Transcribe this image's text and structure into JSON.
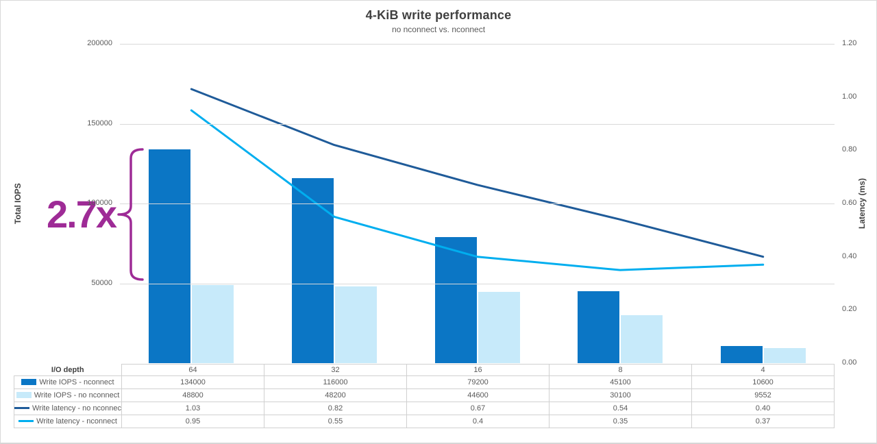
{
  "title": "4-KiB write performance",
  "subtitle": "no nconnect vs. nconnect",
  "annotation": {
    "label": "2.7x",
    "color": "#9e2b96"
  },
  "colors": {
    "grid": "#d9d9d9",
    "table_border": "#d0d0d0",
    "text": "#595959",
    "title_text": "#404040",
    "bar_nconnect": "#0b76c5",
    "bar_no_nconnect": "#c7eafa",
    "line_no_nconnect": "#1f5b99",
    "line_nconnect": "#00aeef"
  },
  "chart_data": {
    "type": "combo-bar-line",
    "title": "4-KiB write performance",
    "subtitle": "no nconnect vs. nconnect",
    "category_axis_label": "I/O depth",
    "categories": [
      "64",
      "32",
      "16",
      "8",
      "4"
    ],
    "left_axis": {
      "label": "Total IOPS",
      "min": 0,
      "max": 200000,
      "tick_values": [
        200000,
        150000,
        100000,
        50000
      ],
      "tick_labels": [
        "200000",
        "150000",
        "100000",
        "50000"
      ],
      "grid": true
    },
    "right_axis": {
      "label": "Latency (ms)",
      "min": 0,
      "max": 1.2,
      "tick_values": [
        1.2,
        1.0,
        0.8,
        0.6,
        0.4,
        0.2,
        0.0
      ],
      "tick_labels": [
        "1.20",
        "1.00",
        "0.80",
        "0.60",
        "0.40",
        "0.20",
        "0.00"
      ],
      "grid": false
    },
    "legend_position": "table-left-column",
    "series": [
      {
        "name": "Write IOPS - nconnect",
        "type": "bar",
        "axis": "left",
        "color": "#0b76c5",
        "values": [
          134000,
          116000,
          79200,
          45100,
          10600
        ],
        "table_values": [
          "134000",
          "116000",
          "79200",
          "45100",
          "10600"
        ]
      },
      {
        "name": "Write IOPS - no nconnect",
        "type": "bar",
        "axis": "left",
        "color": "#c7eafa",
        "values": [
          48800,
          48200,
          44600,
          30100,
          9552
        ],
        "table_values": [
          "48800",
          "48200",
          "44600",
          "30100",
          "9552"
        ]
      },
      {
        "name": "Write latency - no nconnect",
        "type": "line",
        "axis": "right",
        "color": "#1f5b99",
        "values": [
          1.03,
          0.82,
          0.67,
          0.54,
          0.4
        ],
        "table_values": [
          "1.03",
          "0.82",
          "0.67",
          "0.54",
          "0.40"
        ]
      },
      {
        "name": "Write latency - nconnect",
        "type": "line",
        "axis": "right",
        "color": "#00aeef",
        "values": [
          0.95,
          0.55,
          0.4,
          0.35,
          0.37
        ],
        "table_values": [
          "0.95",
          "0.55",
          "0.4",
          "0.35",
          "0.37"
        ]
      }
    ]
  }
}
